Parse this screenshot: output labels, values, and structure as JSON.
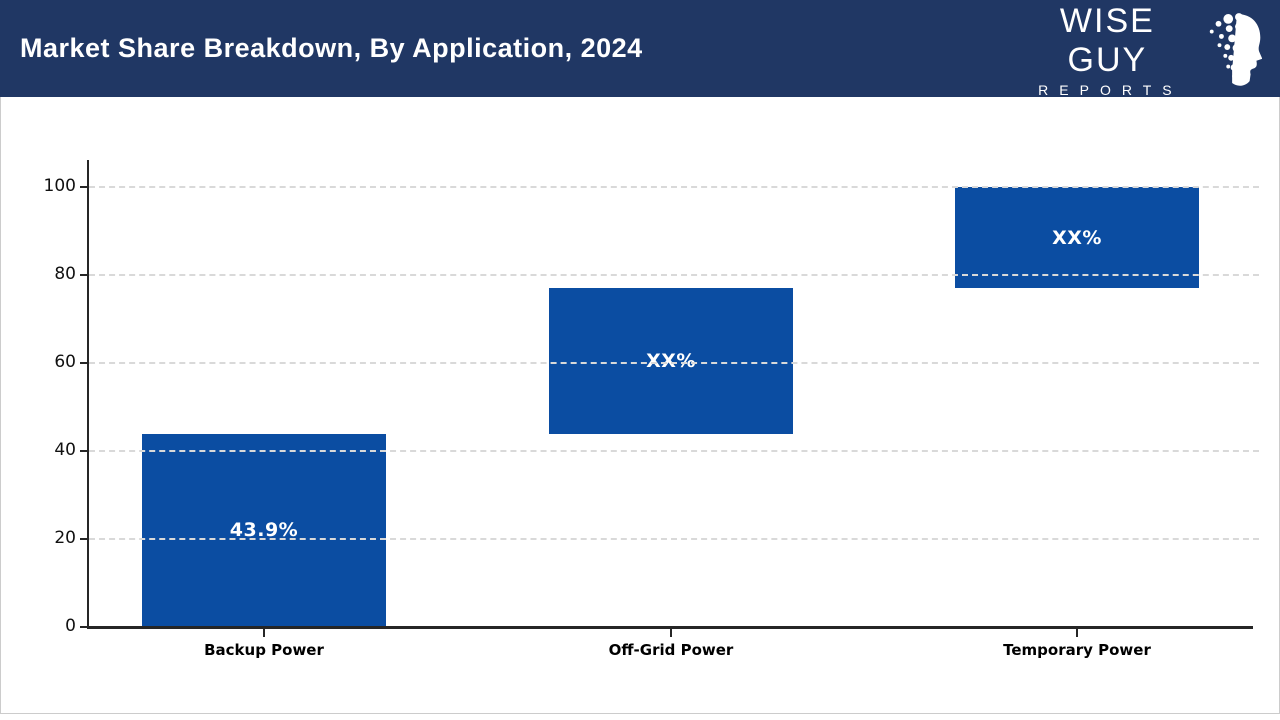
{
  "header": {
    "title": "Market Share Breakdown, By Application, 2024",
    "bg_color": "#203764",
    "logo": {
      "line1": "WISE GUY",
      "line2": "REPORTS"
    }
  },
  "watermark": {
    "line1": "WISE GUY",
    "line2": "REPORTS"
  },
  "chart_data": {
    "type": "bar",
    "subtype": "waterfall",
    "title": "Market Share Breakdown, By Application, 2024",
    "categories": [
      "Backup Power",
      "Off-Grid Power",
      "Temporary Power"
    ],
    "segments": [
      {
        "category": "Backup Power",
        "start": 0,
        "end": 43.9,
        "label": "43.9%"
      },
      {
        "category": "Off-Grid Power",
        "start": 43.9,
        "end": 77,
        "label": "XX%"
      },
      {
        "category": "Temporary Power",
        "start": 77,
        "end": 100,
        "label": "XX%"
      }
    ],
    "ylim": [
      0,
      100
    ],
    "yticks": [
      0,
      20,
      40,
      60,
      80,
      100
    ],
    "xlabel": "",
    "ylabel": "",
    "grid": "horizontal-dashed",
    "legend": "none",
    "bar_color": "#0b4da2",
    "bar_label_color": "#ffffff",
    "gridline_color": "#d9d9d9"
  }
}
